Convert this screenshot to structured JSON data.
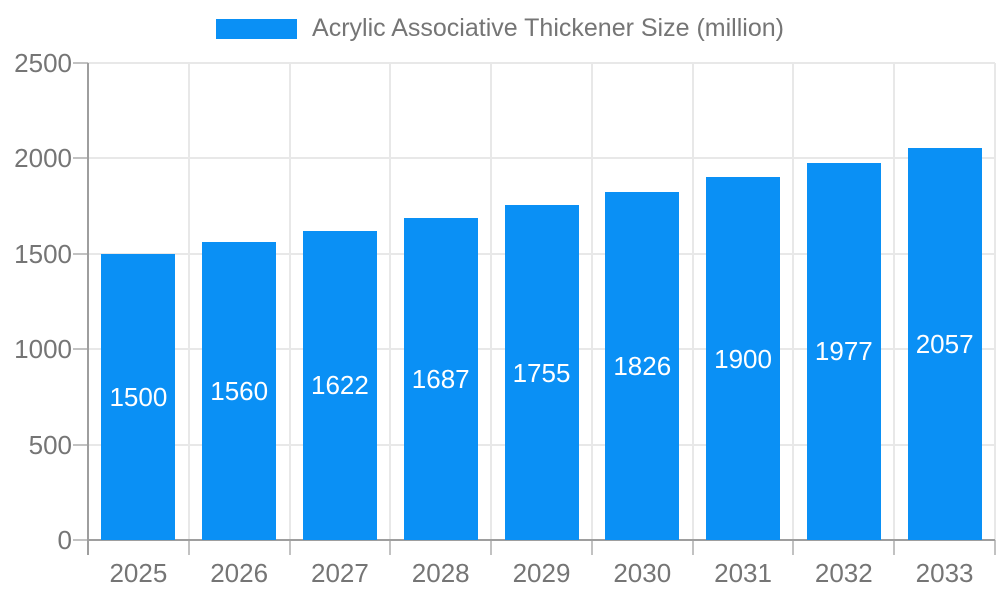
{
  "legend": {
    "label": "Acrylic Associative Thickener Size (million)"
  },
  "colors": {
    "bar": "#0a90f5",
    "axis_line": "#9e9e9e",
    "gridline": "#e8e8e8",
    "tick": "#c2c2c2",
    "axis_text": "#757575",
    "value_label": "#ffffff"
  },
  "chart_data": {
    "type": "bar",
    "title": "",
    "xlabel": "",
    "ylabel": "",
    "categories": [
      "2025",
      "2026",
      "2027",
      "2028",
      "2029",
      "2030",
      "2031",
      "2032",
      "2033"
    ],
    "series": [
      {
        "name": "Acrylic Associative Thickener Size (million)",
        "values": [
          1500,
          1560,
          1622,
          1687,
          1755,
          1826,
          1900,
          1977,
          2057
        ]
      }
    ],
    "value_labels_shown": true,
    "ylim": [
      0,
      2500
    ],
    "y_ticks": [
      0,
      500,
      1000,
      1500,
      2000,
      2500
    ],
    "grid": true,
    "legend_position": "top"
  }
}
